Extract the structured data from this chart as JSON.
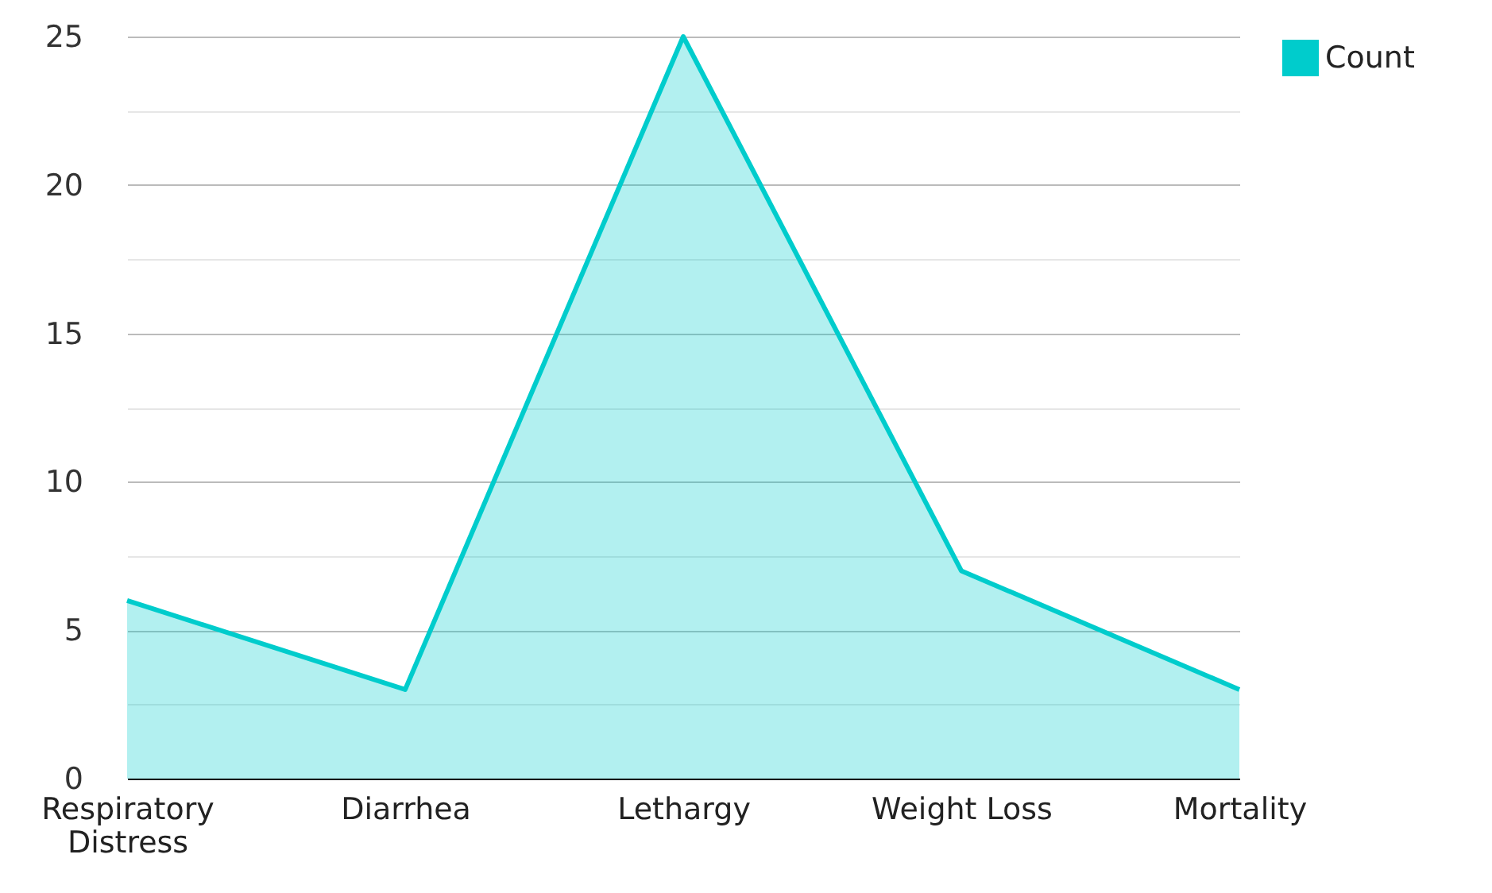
{
  "chart_data": {
    "type": "area",
    "categories": [
      "Respiratory Distress",
      "Diarrhea",
      "Lethargy",
      "Weight Loss",
      "Mortality"
    ],
    "series": [
      {
        "name": "Count",
        "color": "#00cccc",
        "values": [
          6,
          3,
          25,
          7,
          3
        ]
      }
    ],
    "ylim": [
      0,
      25
    ],
    "yticks": [
      0,
      {
        "value": 2.5,
        "label": null
      },
      5,
      {
        "value": 7.5,
        "label": null
      },
      10,
      {
        "value": 12.5,
        "label": null
      },
      15,
      {
        "value": 17.5,
        "label": null
      },
      20,
      {
        "value": 22.5,
        "label": null
      },
      25
    ],
    "grid": "y",
    "legend": "top right"
  }
}
